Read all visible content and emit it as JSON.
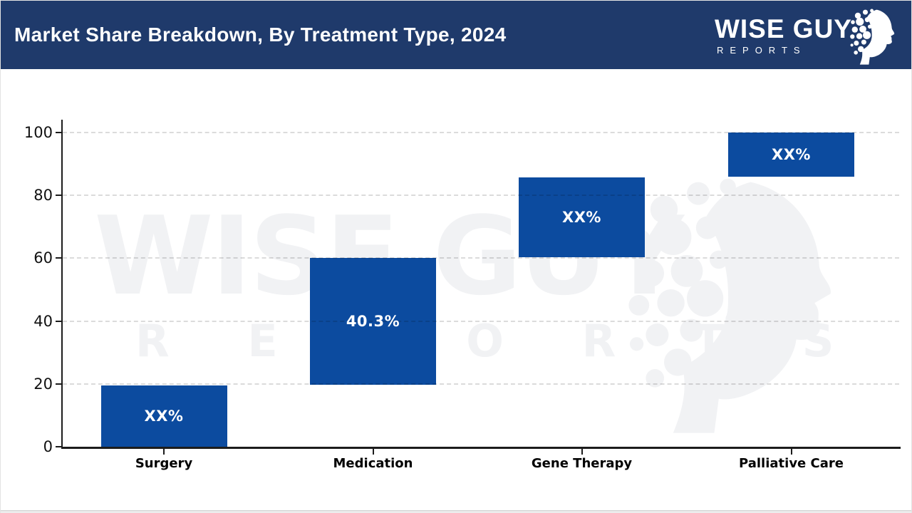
{
  "header": {
    "title": "Market Share Breakdown, By Treatment Type, 2024",
    "logo": {
      "line1": "WISE GUY",
      "line2": "REPORTS"
    }
  },
  "watermark": {
    "line1": "WISE GUY",
    "line2": "R E P O R T S"
  },
  "colors": {
    "header_bg": "#1f3a6b",
    "bar": "#0c4b9f",
    "axis": "#1c1c1c",
    "gridline": "#d9d9d9",
    "watermark": "#f1f2f4",
    "bar_label_text": "#ffffff"
  },
  "chart_data": {
    "type": "bar",
    "subtype": "waterfall",
    "title": "Market Share Breakdown, By Treatment Type, 2024",
    "xlabel": "",
    "ylabel": "",
    "categories": [
      "Surgery",
      "Medication",
      "Gene Therapy",
      "Palliative Care"
    ],
    "segments": [
      {
        "category": "Surgery",
        "start": 0,
        "end": 19.5,
        "label": "XX%"
      },
      {
        "category": "Medication",
        "start": 19.8,
        "end": 60.0,
        "label": "40.3%"
      },
      {
        "category": "Gene Therapy",
        "start": 60.4,
        "end": 85.8,
        "label": "XX%"
      },
      {
        "category": "Palliative Care",
        "start": 86.0,
        "end": 100.0,
        "label": "XX%"
      }
    ],
    "yticks": [
      0,
      20,
      40,
      60,
      80,
      100
    ],
    "ylim": [
      0,
      105
    ],
    "grid": "horizontal dashed",
    "legend": "none"
  }
}
